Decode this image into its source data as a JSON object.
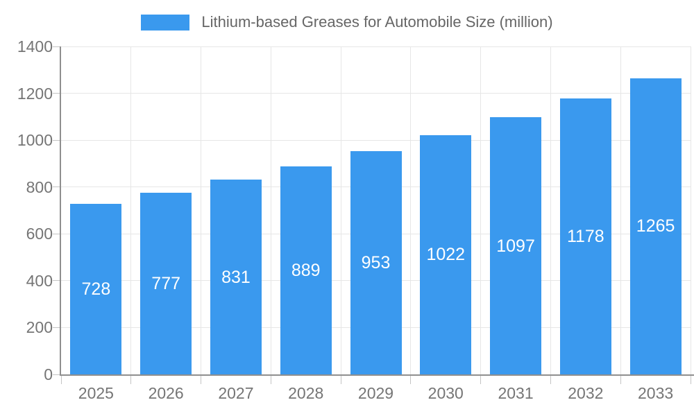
{
  "legend": {
    "label": "Lithium-based Greases for Automobile Size (million)"
  },
  "chart_data": {
    "type": "bar",
    "title": "Lithium-based Greases for Automobile Size (million)",
    "categories": [
      "2025",
      "2026",
      "2027",
      "2028",
      "2029",
      "2030",
      "2031",
      "2032",
      "2033"
    ],
    "values": [
      728,
      777,
      831,
      889,
      953,
      1022,
      1097,
      1178,
      1265
    ],
    "xlabel": "",
    "ylabel": "",
    "ylim": [
      0,
      1400
    ],
    "ytick_step": 200,
    "ytick_labels": [
      "0",
      "200",
      "400",
      "600",
      "800",
      "1000",
      "1200",
      "1400"
    ],
    "grid": true,
    "legend_position": "top-center",
    "bar_color": "#3a99ee",
    "value_label_position": "inside-center",
    "value_label_color": "#ffffff"
  }
}
